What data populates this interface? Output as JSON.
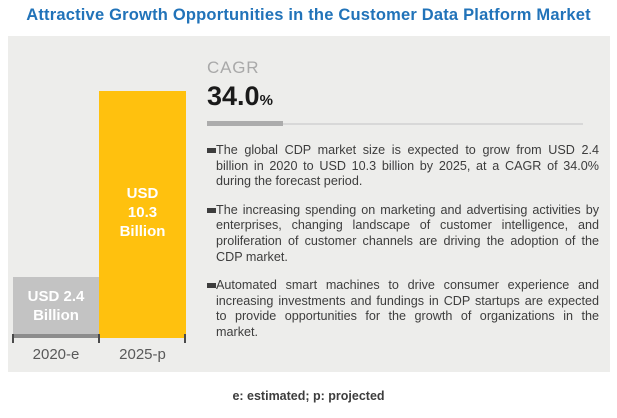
{
  "title": "Attractive Growth Opportunities in the Customer Data Platform Market",
  "cagr": {
    "label": "CAGR",
    "value": "34.0",
    "unit": "%"
  },
  "bullets": [
    "The global CDP market size is expected to grow from USD 2.4 billion in 2020 to USD 10.3 billion by 2025, at a CAGR of 34.0% during the forecast period.",
    "The increasing spending on marketing and advertising activities by enterprises, changing landscape of customer intelligence, and proliferation of customer channels are driving the adoption of the CDP market.",
    "Automated smart machines to drive consumer experience and increasing investments and fundings in CDP startups are expected to provide opportunities for the growth of organizations in the market."
  ],
  "footnote": "e: estimated; p: projected",
  "chart_data": {
    "type": "bar",
    "categories": [
      "2020-e",
      "2025-p"
    ],
    "values": [
      2.4,
      10.3
    ],
    "unit": "USD Billion",
    "bar_labels": [
      "USD 2.4\nBillion",
      "USD\n10.3\nBillion"
    ],
    "bar_colors": [
      "#C3C3C3",
      "#FFC10E"
    ],
    "axis_colors": [
      "#8C8C8C",
      "#FFC10E"
    ],
    "ylim": [
      0,
      10.3
    ],
    "grid": false,
    "legend": false,
    "cagr_percent": 34.0,
    "title": "Attractive Growth Opportunities in the Customer Data Platform Market"
  },
  "colors": {
    "title_blue": "#2173B9",
    "panel_bg": "#EDEDEB",
    "bar_gray": "#C3C3C3",
    "bar_yellow": "#FFC10E",
    "body_text": "#3D3D3D",
    "cagr_label_gray": "#A9A9A9"
  }
}
